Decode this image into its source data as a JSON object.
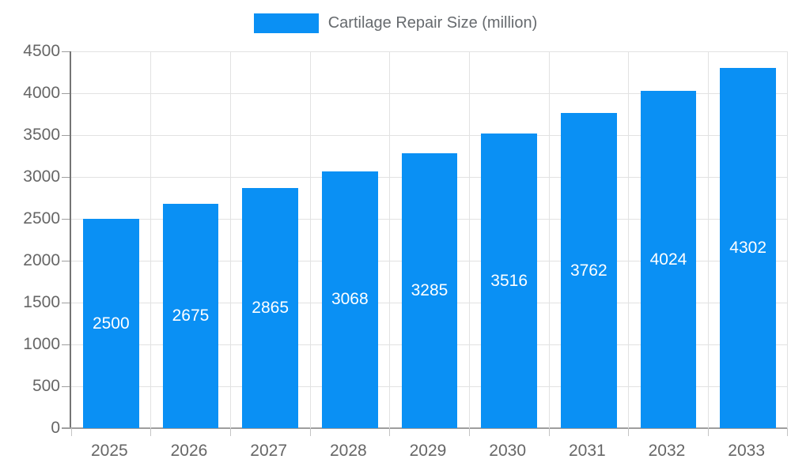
{
  "chart_data": {
    "type": "bar",
    "title": "",
    "legend": "Cartilage Repair Size (million)",
    "legend_position": "top-center",
    "categories": [
      "2025",
      "2026",
      "2027",
      "2028",
      "2029",
      "2030",
      "2031",
      "2032",
      "2033"
    ],
    "values": [
      2500,
      2675,
      2865,
      3068,
      3285,
      3516,
      3762,
      4024,
      4302
    ],
    "xlabel": "",
    "ylabel": "",
    "ylim": [
      0,
      4500
    ],
    "y_ticks": [
      0,
      500,
      1000,
      1500,
      2000,
      2500,
      3000,
      3500,
      4000,
      4500
    ],
    "grid": true,
    "bar_color": "#0a90f4",
    "bar_label_color": "#ffffff",
    "grid_color": "#e2e2e2",
    "axis_line_color": "#757575",
    "baseline_color": "#9e9e9e",
    "tick_label_color": "#666666",
    "legend_text_color": "#666a6e"
  }
}
